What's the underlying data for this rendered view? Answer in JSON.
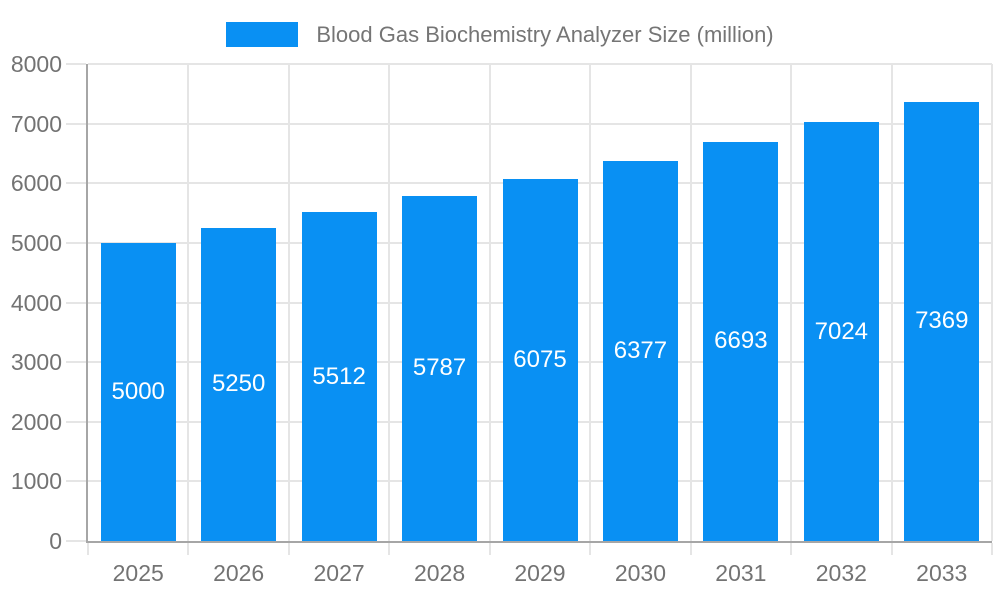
{
  "legend": {
    "series_label": "Blood Gas Biochemistry Analyzer Size (million)"
  },
  "chart_data": {
    "type": "bar",
    "title": "Blood Gas Biochemistry Analyzer Size (million)",
    "categories": [
      "2025",
      "2026",
      "2027",
      "2028",
      "2029",
      "2030",
      "2031",
      "2032",
      "2033"
    ],
    "values": [
      5000,
      5250,
      5512,
      5787,
      6075,
      6377,
      6693,
      7024,
      7369
    ],
    "series": [
      {
        "name": "Blood Gas Biochemistry Analyzer Size (million)",
        "values": [
          5000,
          5250,
          5512,
          5787,
          6075,
          6377,
          6693,
          7024,
          7369
        ]
      }
    ],
    "xlabel": "",
    "ylabel": "",
    "ylim": [
      0,
      8000
    ],
    "yticks": [
      0,
      1000,
      2000,
      3000,
      4000,
      5000,
      6000,
      7000,
      8000
    ],
    "grid": true,
    "legend_position": "top",
    "value_label_position": "inside-center",
    "colors": {
      "bar": "#0990f3",
      "axis_line": "#a6a6a6",
      "gridline": "#e5e5e5",
      "tick_label": "#737373",
      "legend_text": "#757575",
      "value_label": "#ffffff",
      "background": "#ffffff"
    }
  }
}
